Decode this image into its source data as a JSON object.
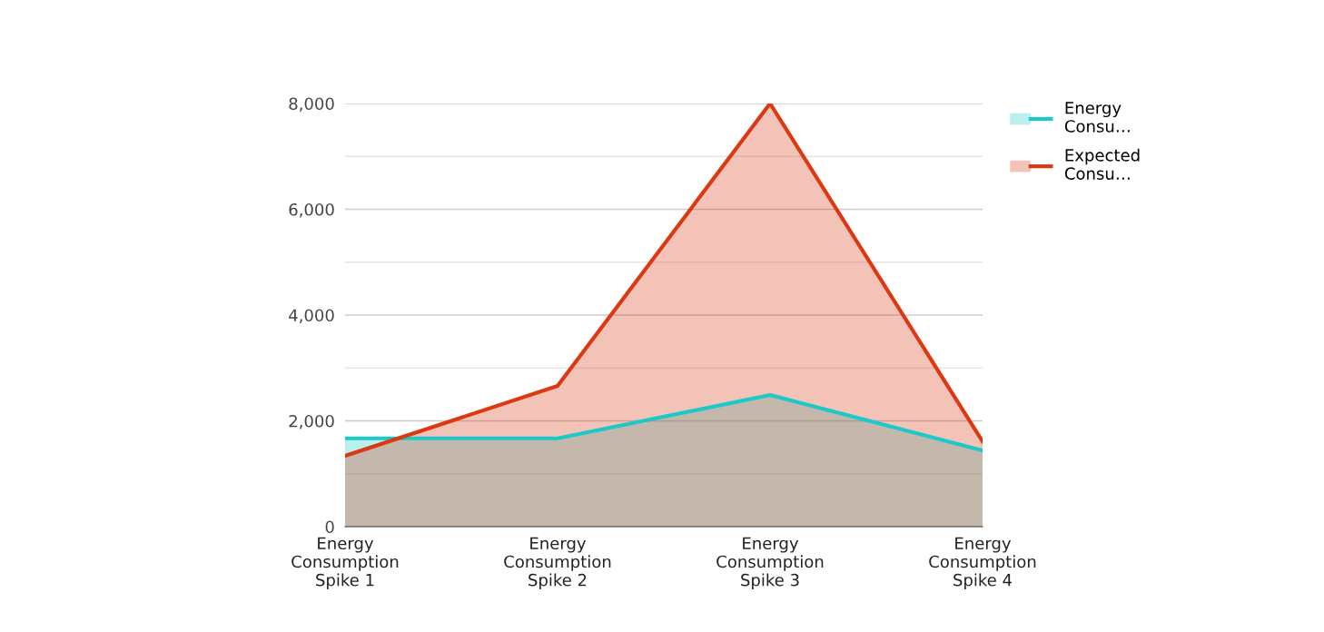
{
  "chart_data": {
    "type": "area",
    "categories": [
      "Energy\nConsumption\nSpike 1",
      "Energy\nConsumption\nSpike 2",
      "Energy\nConsumption\nSpike 3",
      "Energy\nConsumption\nSpike 4"
    ],
    "series": [
      {
        "name": "Energy\nConsu…",
        "color": "#1cc9c9",
        "values": [
          1670,
          1670,
          2490,
          1440
        ]
      },
      {
        "name": "Expected\nConsu…",
        "color": "#dc3912",
        "values": [
          1340,
          2660,
          8000,
          1610
        ]
      }
    ],
    "ylim": [
      0,
      8000
    ],
    "yticks": [
      {
        "value": 0,
        "label": "0"
      },
      {
        "value": 1000,
        "label": null
      },
      {
        "value": 2000,
        "label": "2,000"
      },
      {
        "value": 3000,
        "label": null
      },
      {
        "value": 4000,
        "label": "4,000"
      },
      {
        "value": 5000,
        "label": null
      },
      {
        "value": 6000,
        "label": "6,000"
      },
      {
        "value": 7000,
        "label": null
      },
      {
        "value": 8000,
        "label": "8,000"
      }
    ],
    "grid": "y",
    "legend": "top right"
  }
}
